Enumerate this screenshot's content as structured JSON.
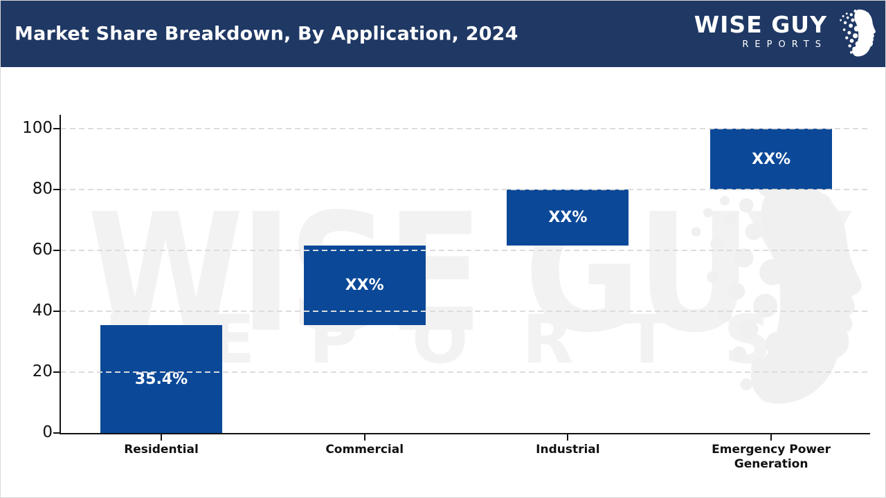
{
  "header": {
    "title": "Market Share Breakdown, By Application, 2024",
    "logo": {
      "line1": "WISE GUY",
      "line2": "REPORTS"
    }
  },
  "watermark": {
    "line1": "WISE GUY",
    "line2": "REPORTS"
  },
  "colors": {
    "header_bg": "#1f3864",
    "bar": "#0b4898",
    "grid": "#dcdcdc",
    "axis": "#111111",
    "watermark": "#f2f2f2",
    "logo_white": "#ffffff"
  },
  "chart_data": {
    "type": "bar",
    "subtype": "floating-waterfall",
    "title": "Market Share Breakdown, By Application, 2024",
    "categories": [
      "Residential",
      "Commercial",
      "Industrial",
      "Emergency Power Generation"
    ],
    "segments": [
      {
        "category": "Residential",
        "start": 0,
        "end": 35.4,
        "value_label": "35.4%"
      },
      {
        "category": "Commercial",
        "start": 35.4,
        "end": 61.5,
        "value_label": "XX%"
      },
      {
        "category": "Industrial",
        "start": 61.5,
        "end": 80,
        "value_label": "XX%"
      },
      {
        "category": "Emergency Power Generation",
        "start": 80,
        "end": 100,
        "value_label": "XX%"
      }
    ],
    "yticks": [
      0,
      20,
      40,
      60,
      80,
      100
    ],
    "ylim": [
      0,
      105
    ],
    "xlabel": "",
    "ylabel": "",
    "grid": "horizontal-dashed",
    "legend": "none"
  }
}
